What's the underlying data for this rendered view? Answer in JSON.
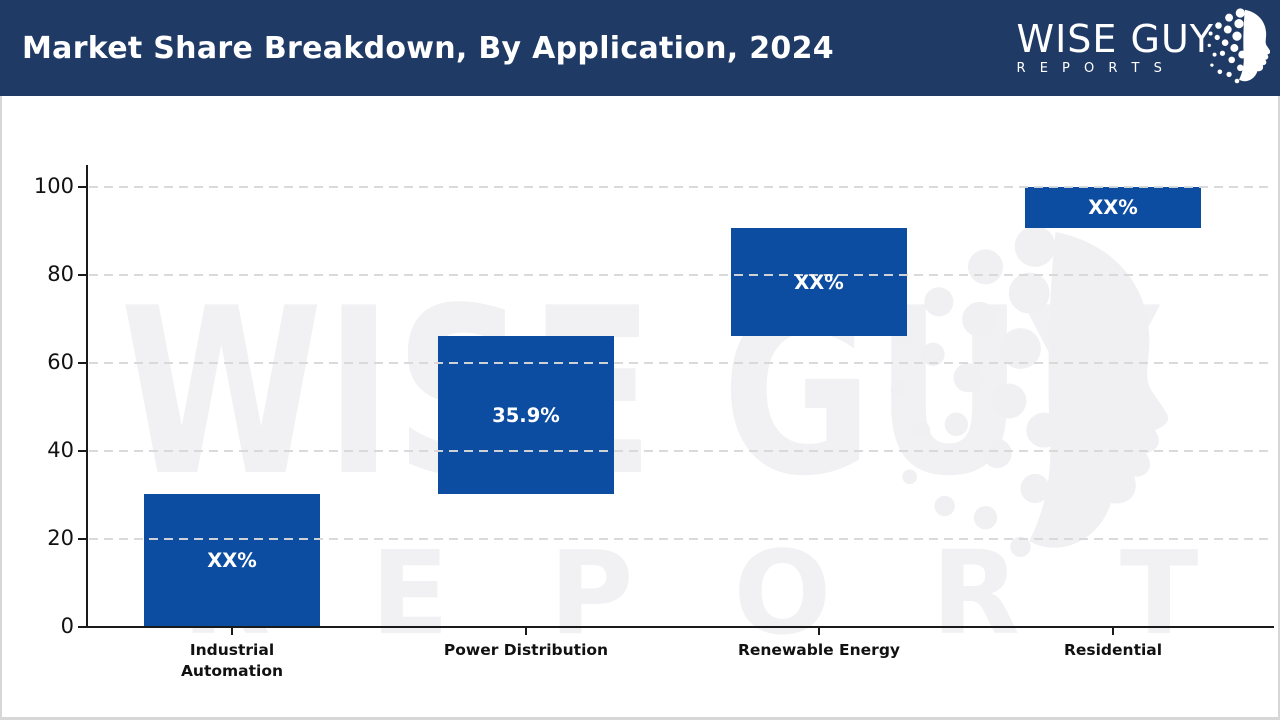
{
  "header": {
    "title": "Market Share Breakdown, By Application, 2024",
    "logo": {
      "primary": "WISE GUY",
      "secondary": "R E P O R T S",
      "icon": "dotted-head-profile"
    }
  },
  "watermark": {
    "primary": "WISE GUY",
    "secondary": "R E P O R T S",
    "icon": "dotted-head-profile"
  },
  "chart_data": {
    "type": "bar",
    "subtype": "floating-waterfall",
    "title": "Market Share Breakdown, By Application, 2024",
    "categories": [
      "Industrial Automation",
      "Power Distribution",
      "Renewable Energy",
      "Residential"
    ],
    "bars": [
      {
        "category": "Industrial Automation",
        "start": 0,
        "end": 30.2,
        "height": 30.2,
        "label": "XX%",
        "label_lines": [
          "Industrial",
          "Automation"
        ]
      },
      {
        "category": "Power Distribution",
        "start": 30.2,
        "end": 66.1,
        "height": 35.9,
        "label": "35.9%",
        "label_lines": [
          "Power Distribution"
        ]
      },
      {
        "category": "Renewable Energy",
        "start": 66.1,
        "end": 90.6,
        "height": 24.5,
        "label": "XX%",
        "label_lines": [
          "Renewable Energy"
        ]
      },
      {
        "category": "Residential",
        "start": 90.6,
        "end": 100,
        "height": 9.4,
        "label": "XX%",
        "label_lines": [
          "Residential"
        ]
      }
    ],
    "yticks": [
      0,
      20,
      40,
      60,
      80,
      100
    ],
    "ylim": [
      0,
      105
    ],
    "xlabel": "",
    "ylabel": "",
    "grid": "horizontal-dashed-over-bars",
    "legend": "none",
    "bar_color": "#0c4da2",
    "bar_label_color": "#ffffff"
  },
  "colors": {
    "header_bg": "#203a66",
    "bar_blue": "#0c4da2",
    "axis": "#1a1a1a",
    "grid": "#d9d9d9",
    "watermark": "#f1f1f3",
    "frame_border": "#d7d7d7",
    "title_text": "#ffffff",
    "tick_text": "#111111"
  }
}
